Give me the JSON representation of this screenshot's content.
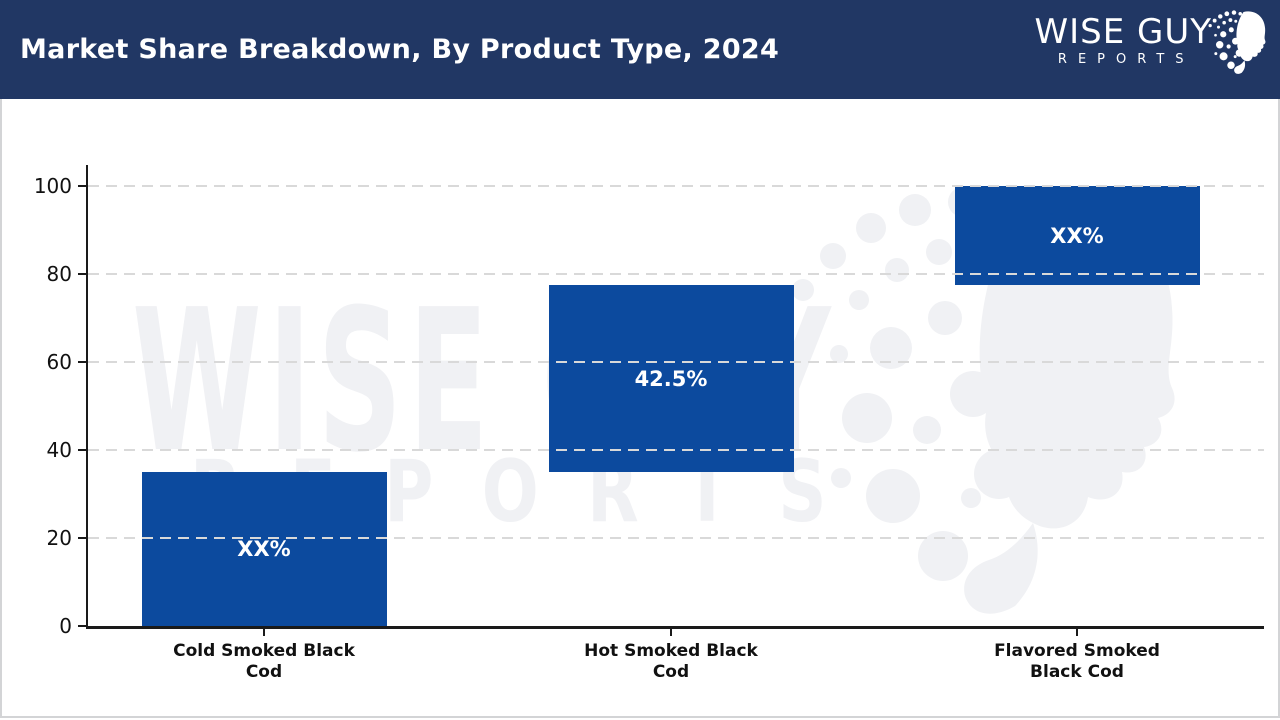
{
  "header": {
    "title": "Market Share Breakdown, By Product Type, 2024",
    "logo": {
      "wordmark": "WISE GUY",
      "subtext": "REPORTS"
    }
  },
  "watermark": {
    "line1": "WISE GUY",
    "line2": "REPORTS"
  },
  "chart_data": {
    "type": "bar",
    "subtype": "waterfall",
    "title": "Market Share Breakdown, By Product Type, 2024",
    "categories": [
      "Cold Smoked Black Cod",
      "Hot Smoked Black Cod",
      "Flavored Smoked Black Cod"
    ],
    "category_label_lines": [
      [
        "Cold Smoked Black",
        "Cod"
      ],
      [
        "Hot Smoked Black",
        "Cod"
      ],
      [
        "Flavored Smoked",
        "Black Cod"
      ]
    ],
    "bars": [
      {
        "category": "Cold Smoked Black Cod",
        "start": 0,
        "end": 35,
        "value": 35,
        "display_label": "XX%"
      },
      {
        "category": "Hot Smoked Black Cod",
        "start": 35,
        "end": 77.5,
        "value": 42.5,
        "display_label": "42.5%"
      },
      {
        "category": "Flavored Smoked Black Cod",
        "start": 77.5,
        "end": 100,
        "value": 22.5,
        "display_label": "XX%"
      }
    ],
    "y_axis": {
      "ticks": [
        0,
        20,
        40,
        60,
        80,
        100
      ],
      "range": [
        0,
        105
      ],
      "grid_values": [
        20,
        40,
        60,
        80,
        100
      ]
    },
    "xlabel": "",
    "ylabel": "",
    "legend": null,
    "grid": {
      "visible": true,
      "style": "dashed"
    },
    "colors": {
      "bar": "#0c4a9e",
      "header_bg": "#213764",
      "grid": "#d9d9d9",
      "bar_label_text": "#ffffff",
      "watermark": "#f0f1f4"
    }
  }
}
